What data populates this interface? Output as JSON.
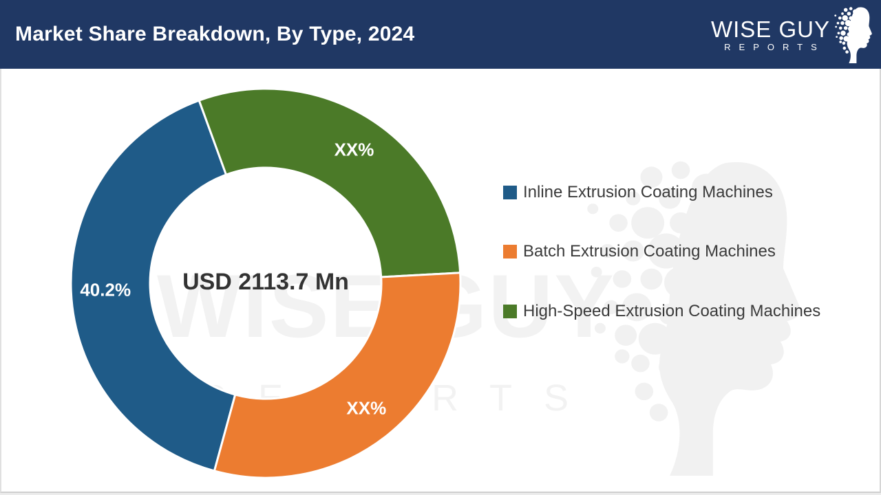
{
  "header": {
    "title": "Market Share Breakdown, By Type, 2024",
    "logo": {
      "brand": "WISE GUY",
      "sub": "REPORTS"
    }
  },
  "watermark": {
    "line1": "WISE GUY",
    "line2": "REPORTS"
  },
  "chart_data": {
    "type": "pie",
    "variant": "donut",
    "title": "Market Share Breakdown, By Type, 2024",
    "center_label": "USD 2113.7 Mn",
    "start_angle_deg": 195.28,
    "draw_order": [
      0,
      2,
      1
    ],
    "legend_position": "right",
    "slices": [
      {
        "label": "Inline Extrusion Coating Machines",
        "value": 40.2,
        "display_pct": "40.2%",
        "color": "#1F5B88"
      },
      {
        "label": "Batch Extrusion Coating Machines",
        "value": 30.1,
        "display_pct": "XX%",
        "color": "#EC7C30"
      },
      {
        "label": "High-Speed Extrusion Coating Machines",
        "value": 29.7,
        "display_pct": "XX%",
        "color": "#4B7A28"
      }
    ]
  },
  "colors": {
    "header_bg": "#203864",
    "title_text": "#FFFFFF",
    "center_text": "#333333",
    "legend_text": "#3A3A3A",
    "watermark": "#F2F2F2",
    "card_border": "#D6D6D6"
  }
}
